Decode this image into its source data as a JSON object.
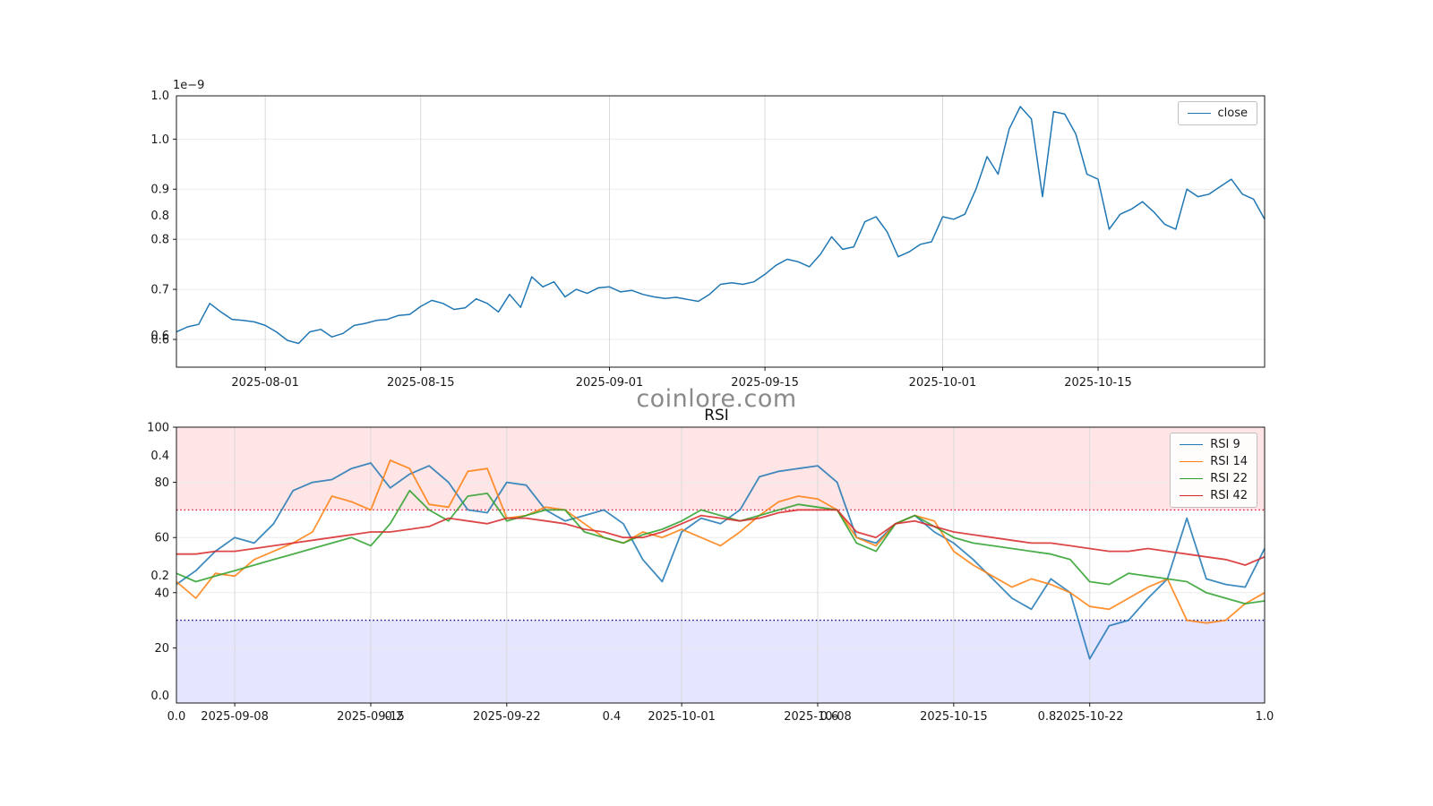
{
  "watermark": "coinlore.com",
  "overlay_axis": {
    "x": [
      {
        "f": 0.0,
        "label": "0.0"
      },
      {
        "f": 0.2,
        "label": "0.2"
      },
      {
        "f": 0.4,
        "label": "0.4"
      },
      {
        "f": 0.6,
        "label": "0.6"
      },
      {
        "f": 0.8,
        "label": "0.8"
      },
      {
        "f": 1.0,
        "label": "1.0"
      }
    ],
    "y": [
      {
        "f": 0.0,
        "label": "0.0"
      },
      {
        "f": 0.2,
        "label": "0.2"
      },
      {
        "f": 0.4,
        "label": "0.4"
      },
      {
        "f": 0.6,
        "label": "0.6"
      },
      {
        "f": 0.8,
        "label": "0.8"
      },
      {
        "f": 1.0,
        "label": "1.0"
      }
    ]
  },
  "chart_data": [
    {
      "type": "line",
      "name": "price-close",
      "title": "",
      "scale_label": "1e−9",
      "unit": "x1e-9",
      "start_date": "2025-07-24",
      "freq": "daily",
      "ylim": [
        0.5446,
        1.0864
      ],
      "legend_position": "upper right",
      "grid": true,
      "x_ticks": [
        {
          "label": "2025-08-01",
          "i": 8
        },
        {
          "label": "2025-08-15",
          "i": 22
        },
        {
          "label": "2025-09-01",
          "i": 39
        },
        {
          "label": "2025-09-15",
          "i": 53
        },
        {
          "label": "2025-10-01",
          "i": 69
        },
        {
          "label": "2025-10-15",
          "i": 83
        }
      ],
      "y_ticks": [
        {
          "v": 0.6,
          "label": "0.6"
        },
        {
          "v": 0.7,
          "label": "0.7"
        },
        {
          "v": 0.8,
          "label": "0.8"
        },
        {
          "v": 0.9,
          "label": "0.9"
        },
        {
          "v": 1.0,
          "label": "1.0"
        }
      ],
      "series": [
        {
          "name": "close",
          "color": "#1f77b4",
          "values": [
            0.615,
            0.625,
            0.63,
            0.672,
            0.655,
            0.64,
            0.638,
            0.635,
            0.628,
            0.615,
            0.598,
            0.592,
            0.615,
            0.62,
            0.605,
            0.612,
            0.628,
            0.632,
            0.638,
            0.64,
            0.648,
            0.65,
            0.666,
            0.678,
            0.672,
            0.66,
            0.663,
            0.681,
            0.672,
            0.655,
            0.69,
            0.664,
            0.725,
            0.705,
            0.715,
            0.685,
            0.7,
            0.692,
            0.703,
            0.705,
            0.695,
            0.698,
            0.69,
            0.685,
            0.682,
            0.684,
            0.68,
            0.676,
            0.69,
            0.71,
            0.713,
            0.71,
            0.715,
            0.73,
            0.748,
            0.76,
            0.755,
            0.745,
            0.77,
            0.805,
            0.78,
            0.785,
            0.835,
            0.845,
            0.815,
            0.765,
            0.775,
            0.79,
            0.795,
            0.845,
            0.84,
            0.85,
            0.9,
            0.965,
            0.93,
            1.02,
            1.065,
            1.04,
            0.885,
            1.055,
            1.05,
            1.01,
            0.93,
            0.92,
            0.82,
            0.85,
            0.86,
            0.875,
            0.855,
            0.83,
            0.82,
            0.9,
            0.885,
            0.89,
            0.905,
            0.92,
            0.89,
            0.88,
            0.84
          ]
        }
      ]
    },
    {
      "type": "line",
      "name": "rsi",
      "title": "RSI",
      "start_date": "2025-09-05",
      "freq": "daily",
      "ylim": [
        0,
        100
      ],
      "legend_position": "upper right",
      "grid": true,
      "x_ticks": [
        {
          "label": "2025-09-08",
          "i": 3
        },
        {
          "label": "2025-09-15",
          "i": 10
        },
        {
          "label": "2025-09-22",
          "i": 17
        },
        {
          "label": "2025-10-01",
          "i": 26
        },
        {
          "label": "2025-10-08",
          "i": 33
        },
        {
          "label": "2025-10-15",
          "i": 40
        },
        {
          "label": "2025-10-22",
          "i": 47
        }
      ],
      "y_ticks": [
        {
          "v": 100,
          "label": "100"
        },
        {
          "v": 80,
          "label": "80"
        },
        {
          "v": 60,
          "label": "60"
        },
        {
          "v": 40,
          "label": "40"
        },
        {
          "v": 20,
          "label": "20"
        }
      ],
      "bands": [
        {
          "from": 70,
          "to": 100,
          "color": "rgba(255,0,0,0.10)",
          "meaning": "overbought"
        },
        {
          "from": 0,
          "to": 30,
          "color": "rgba(0,0,255,0.10)",
          "meaning": "oversold"
        }
      ],
      "hlines": [
        {
          "y": 70,
          "color": "#dc143c",
          "style": "dotted"
        },
        {
          "y": 30,
          "color": "#00008b",
          "style": "dotted"
        }
      ],
      "series": [
        {
          "name": "RSI 9",
          "color": "#1f77b4",
          "values": [
            43,
            48,
            55,
            60,
            58,
            65,
            77,
            80,
            81,
            85,
            87,
            78,
            83,
            86,
            80,
            70,
            69,
            80,
            79,
            70,
            66,
            68,
            70,
            65,
            52,
            44,
            62,
            67,
            65,
            70,
            82,
            84,
            85,
            86,
            80,
            60,
            58,
            65,
            68,
            62,
            58,
            52,
            45,
            38,
            34,
            45,
            40,
            16,
            28,
            30,
            38,
            45,
            67,
            45,
            43,
            42,
            56
          ]
        },
        {
          "name": "RSI 14",
          "color": "#ff7f0e",
          "values": [
            44,
            38,
            47,
            46,
            52,
            55,
            58,
            62,
            75,
            73,
            70,
            88,
            85,
            72,
            71,
            84,
            85,
            67,
            68,
            71,
            70,
            65,
            60,
            58,
            62,
            60,
            63,
            60,
            57,
            62,
            68,
            73,
            75,
            74,
            70,
            60,
            57,
            65,
            68,
            66,
            55,
            50,
            46,
            42,
            45,
            43,
            40,
            35,
            34,
            38,
            42,
            45,
            30,
            29,
            30,
            36,
            40
          ]
        },
        {
          "name": "RSI 22",
          "color": "#2ca02c",
          "values": [
            47,
            44,
            46,
            48,
            50,
            52,
            54,
            56,
            58,
            60,
            57,
            65,
            77,
            70,
            66,
            75,
            76,
            66,
            68,
            70,
            70,
            62,
            60,
            58,
            61,
            63,
            66,
            70,
            68,
            66,
            68,
            70,
            72,
            71,
            70,
            58,
            55,
            65,
            68,
            64,
            60,
            58,
            57,
            56,
            55,
            54,
            52,
            44,
            43,
            47,
            46,
            45,
            44,
            40,
            38,
            36,
            37
          ]
        },
        {
          "name": "RSI 42",
          "color": "#d62728",
          "values": [
            54,
            54,
            55,
            55,
            56,
            57,
            58,
            59,
            60,
            61,
            62,
            62,
            63,
            64,
            67,
            66,
            65,
            67,
            67,
            66,
            65,
            63,
            62,
            60,
            60,
            62,
            65,
            68,
            67,
            66,
            67,
            69,
            70,
            70,
            70,
            62,
            60,
            65,
            66,
            64,
            62,
            61,
            60,
            59,
            58,
            58,
            57,
            56,
            55,
            55,
            56,
            55,
            54,
            53,
            52,
            50,
            53
          ]
        }
      ]
    }
  ]
}
